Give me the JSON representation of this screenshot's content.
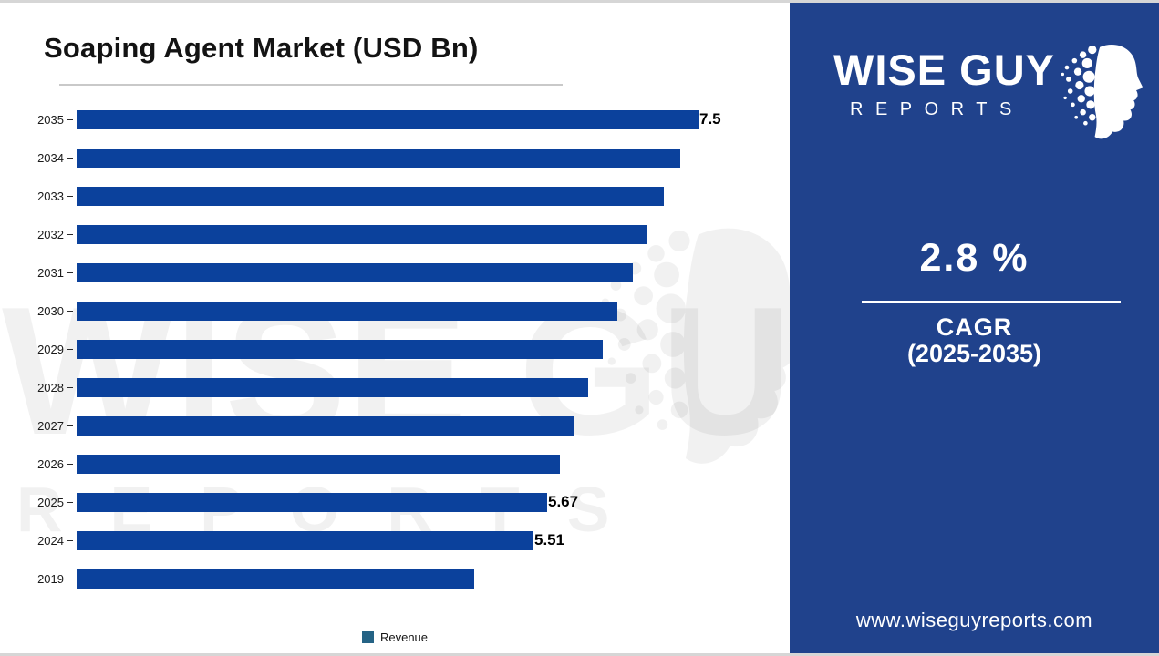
{
  "chart_data": {
    "type": "bar",
    "orientation": "horizontal",
    "title": "Soaping Agent Market (USD Bn)",
    "unit": "USD Bn",
    "row_order": "top-to-bottom",
    "categories": [
      "2035",
      "2034",
      "2033",
      "2032",
      "2031",
      "2030",
      "2029",
      "2028",
      "2027",
      "2026",
      "2025",
      "2024",
      "2019"
    ],
    "values": [
      7.5,
      7.28,
      7.08,
      6.87,
      6.71,
      6.52,
      6.35,
      6.17,
      5.99,
      5.83,
      5.67,
      5.51,
      4.8
    ],
    "data_labels": [
      "7.5",
      "",
      "",
      "",
      "",
      "",
      "",
      "",
      "",
      "",
      "5.67",
      "5.51",
      ""
    ],
    "xlabel": "",
    "ylabel": "",
    "xlim": [
      0,
      8.3
    ],
    "grid": false,
    "legend": {
      "entries": [
        "Revenue"
      ],
      "position": "bottom-center"
    },
    "bar_color": "#0b419c",
    "legend_swatch_color": "#256385"
  },
  "watermark": {
    "line1": "WISE GUY",
    "line2": "REPORTS"
  },
  "sidebar": {
    "background_color": "#20428c",
    "logo_line1": "WISE GUY",
    "logo_line2": "REPORTS",
    "cagr_value": "2.8 %",
    "cagr_label": "CAGR",
    "cagr_range": "(2025-2035)",
    "website": "www.wiseguyreports.com"
  }
}
